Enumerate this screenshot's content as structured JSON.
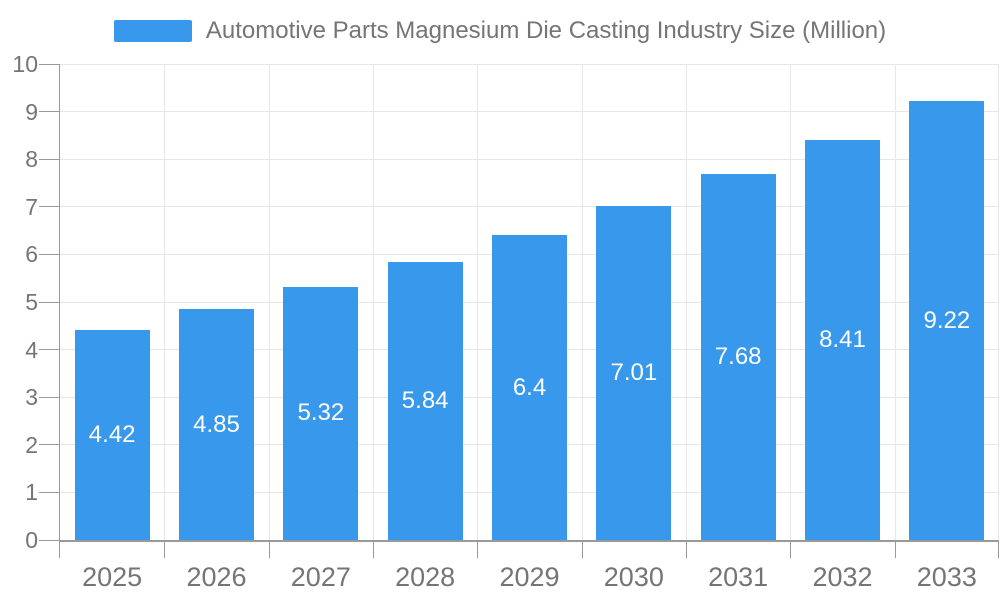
{
  "chart_data": {
    "type": "bar",
    "title": "Automotive Parts Magnesium Die Casting Industry Size (Million)",
    "categories": [
      "2025",
      "2026",
      "2027",
      "2028",
      "2029",
      "2030",
      "2031",
      "2032",
      "2033"
    ],
    "values": [
      4.42,
      4.85,
      5.32,
      5.84,
      6.4,
      7.01,
      7.68,
      8.41,
      9.22
    ],
    "value_labels": [
      "4.42",
      "4.85",
      "5.32",
      "5.84",
      "6.4",
      "7.01",
      "7.68",
      "8.41",
      "9.22"
    ],
    "xlabel": "",
    "ylabel": "",
    "ylim": [
      0,
      10
    ],
    "ytick_interval": 1,
    "ytick_labels": [
      "0",
      "1",
      "2",
      "3",
      "4",
      "5",
      "6",
      "7",
      "8",
      "9",
      "10"
    ],
    "grid": true,
    "legend_position": "top",
    "value_label_position": "inside-center",
    "colors": {
      "bar": "#3898ec",
      "grid": "#e6e6e6",
      "axis": "#999999",
      "axis_label": "#757575",
      "title": "#757575",
      "value_label": "#ffffff",
      "background": "#ffffff"
    }
  }
}
